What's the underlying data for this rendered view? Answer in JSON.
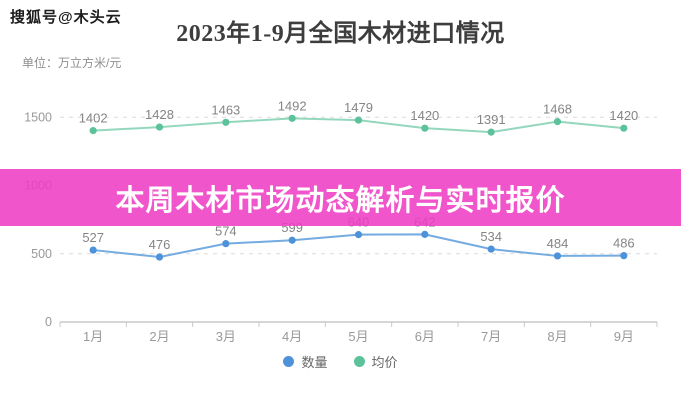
{
  "watermark": "搜狐号@木头云",
  "header": {
    "title": "2023年1-9月全国木材进口情况",
    "unit_label": "单位：万立方米/元"
  },
  "banner": {
    "text": "本周木材市场动态解析与实时报价",
    "color": "#ee3cc3",
    "opacity": 0.87
  },
  "chart_data": {
    "type": "line",
    "title": "2023年1-9月全国木材进口情况",
    "unit": "万立方米/元",
    "categories": [
      "1月",
      "2月",
      "3月",
      "4月",
      "5月",
      "6月",
      "7月",
      "8月",
      "9月"
    ],
    "series": [
      {
        "name": "数量",
        "values": [
          527,
          476,
          574,
          599,
          640,
          642,
          534,
          484,
          486
        ],
        "line_color": "#74abe0",
        "point_color": "#4e93d9"
      },
      {
        "name": "均价",
        "values": [
          1402,
          1428,
          1463,
          1492,
          1479,
          1420,
          1391,
          1468,
          1420
        ],
        "line_color": "#93d7bd",
        "point_color": "#5cc29c"
      }
    ],
    "ylim": [
      0,
      1500
    ],
    "yticks": [
      0,
      500,
      1000,
      1500
    ],
    "grid": "horizontal-dashed",
    "grid_color": "#dcdcdc",
    "axis_color": "#c8c8c8",
    "tick_label_color": "#999999",
    "data_label_color": "#858585",
    "legend_position": "bottom",
    "legend": [
      "数量",
      "均价"
    ]
  }
}
